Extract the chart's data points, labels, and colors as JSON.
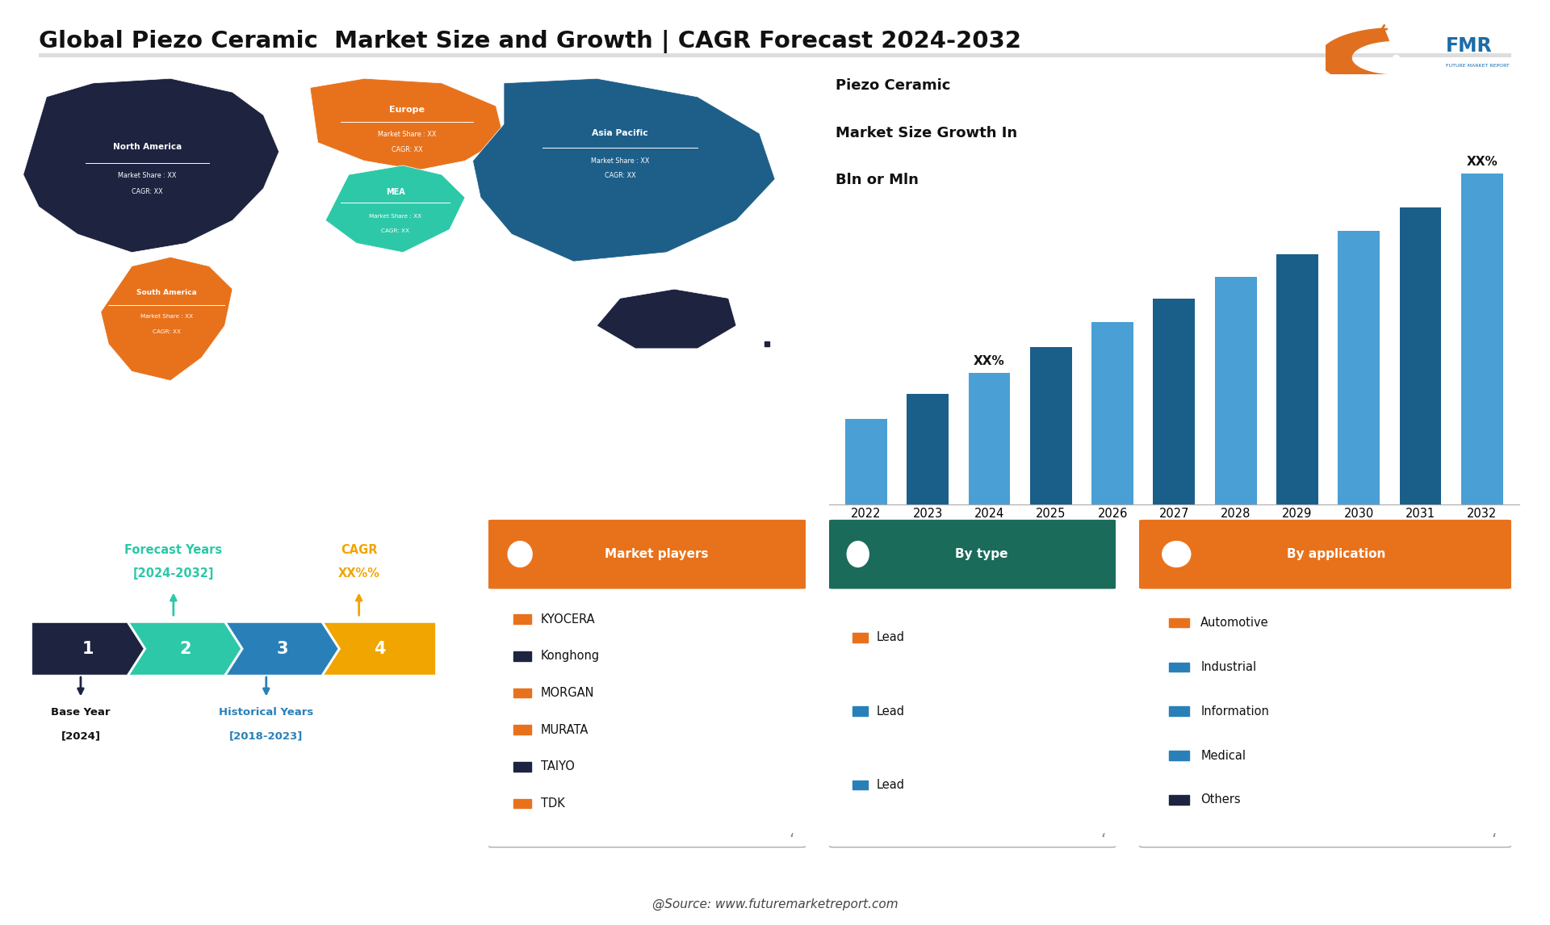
{
  "title": "Global Piezo Ceramic  Market Size and Growth | CAGR Forecast 2024-2032",
  "title_fontsize": 21,
  "bg_color": "#ffffff",
  "bar_years": [
    "2022",
    "2023",
    "2024",
    "2025",
    "2026",
    "2027",
    "2028",
    "2029",
    "2030",
    "2031",
    "2032"
  ],
  "bar_heights": [
    2.0,
    2.6,
    3.1,
    3.7,
    4.3,
    4.85,
    5.35,
    5.9,
    6.45,
    7.0,
    7.8
  ],
  "bar_color_light": "#4a9fd4",
  "bar_color_dark": "#1a5f8a",
  "chart_title_line1": "Piezo Ceramic",
  "chart_title_line2": "Market Size Growth In",
  "chart_title_line3": "Bln or Mln",
  "market_players": [
    "KYOCERA",
    "Konghong",
    "MORGAN",
    "MURATA",
    "TAIYO",
    "TDK"
  ],
  "by_type": [
    "Lead",
    "Lead",
    "Lead"
  ],
  "by_application": [
    "Automotive",
    "Industrial",
    "Information",
    "Medical",
    "Others"
  ],
  "orange_color": "#e8721c",
  "teal_color": "#1a6b5a",
  "dark_navy": "#1e2340",
  "teal_bright": "#2dc8a8",
  "blue_mid": "#2980b9",
  "gold_color": "#f0a500",
  "segment_colors": [
    "#1e2340",
    "#2dc8a8",
    "#2980b9",
    "#f0a500"
  ],
  "segment_labels": [
    "1",
    "2",
    "3",
    "4"
  ],
  "source_text": "@Source: www.futuremarketreport.com",
  "fmr_blue": "#1b6ca8",
  "fmr_orange": "#e07020",
  "mp_dot_colors": [
    "#e8721c",
    "#1e2340",
    "#e8721c",
    "#e8721c",
    "#1e2340",
    "#e8721c"
  ],
  "bt_dot_colors": [
    "#e8721c",
    "#2980b9",
    "#2980b9"
  ],
  "ba_dot_colors": [
    "#e8721c",
    "#2980b9",
    "#2980b9",
    "#2980b9",
    "#1e2340"
  ]
}
